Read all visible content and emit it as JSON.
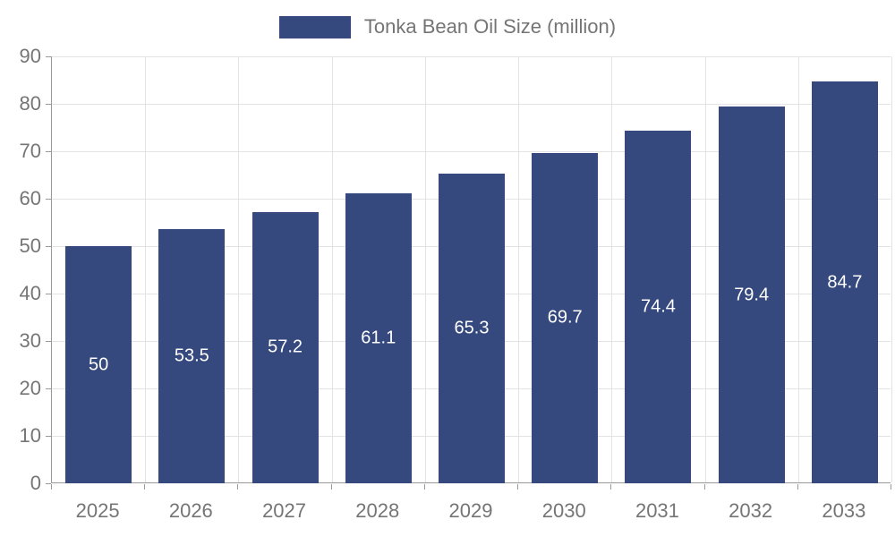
{
  "legend": {
    "label": "Tonka Bean Oil Size (million)"
  },
  "chart_data": {
    "type": "bar",
    "title": "",
    "categories": [
      "2025",
      "2026",
      "2027",
      "2028",
      "2029",
      "2030",
      "2031",
      "2032",
      "2033"
    ],
    "series": [
      {
        "name": "Tonka Bean Oil Size (million)",
        "values": [
          50,
          53.5,
          57.2,
          61.1,
          65.3,
          69.7,
          74.4,
          79.4,
          84.7
        ]
      }
    ],
    "value_labels": [
      "50",
      "53.5",
      "57.2",
      "61.1",
      "65.3",
      "69.7",
      "74.4",
      "79.4",
      "84.7"
    ],
    "xlabel": "",
    "ylabel": "",
    "ylim": [
      0,
      90
    ],
    "yticks": [
      0,
      10,
      20,
      30,
      40,
      50,
      60,
      70,
      80,
      90
    ],
    "grid": true,
    "legend_position": "top-center",
    "colors": {
      "bar": "#36497E",
      "grid": "#e3e3e3",
      "axis": "#999999",
      "tick_label": "#757575",
      "value_label": "#ffffff",
      "legend_text": "#757575"
    }
  }
}
